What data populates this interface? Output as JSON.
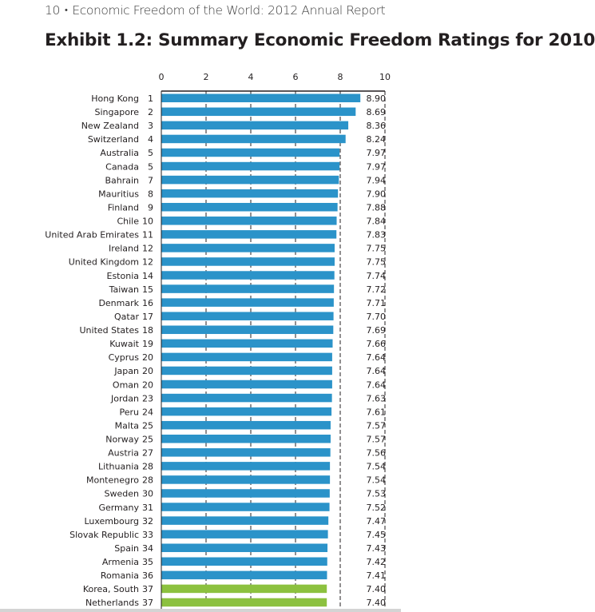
{
  "header": {
    "page_number": "10",
    "separator": "•",
    "publication": "Economic Freedom of the World: 2012 Annual Report"
  },
  "colors": {
    "bar_default": "#2b93c9",
    "bar_highlight": "#8cc13f",
    "text": "#231f20"
  },
  "chart_data": {
    "type": "bar",
    "orientation": "horizontal",
    "title": "Exhibit 1.2: Summary Economic Freedom Ratings for 2010",
    "xlabel": "",
    "ylabel": "",
    "xlim": [
      0,
      10
    ],
    "x_ticks": [
      0,
      2,
      4,
      6,
      8,
      10
    ],
    "grid": "vertical dashed",
    "legend": "none",
    "categories": [
      "Hong Kong",
      "Singapore",
      "New Zealand",
      "Switzerland",
      "Australia",
      "Canada",
      "Bahrain",
      "Mauritius",
      "Finland",
      "Chile",
      "United Arab Emirates",
      "Ireland",
      "United Kingdom",
      "Estonia",
      "Taiwan",
      "Denmark",
      "Qatar",
      "United States",
      "Kuwait",
      "Cyprus",
      "Japan",
      "Oman",
      "Jordan",
      "Peru",
      "Malta",
      "Norway",
      "Austria",
      "Lithuania",
      "Montenegro",
      "Sweden",
      "Germany",
      "Luxembourg",
      "Slovak Republic",
      "Spain",
      "Armenia",
      "Romania",
      "Korea, South",
      "Netherlands"
    ],
    "ranks": [
      1,
      2,
      3,
      4,
      5,
      5,
      7,
      8,
      9,
      10,
      11,
      12,
      12,
      14,
      15,
      16,
      17,
      18,
      19,
      20,
      20,
      20,
      23,
      24,
      25,
      25,
      27,
      28,
      28,
      30,
      31,
      32,
      33,
      34,
      35,
      36,
      37,
      37
    ],
    "values": [
      8.9,
      8.69,
      8.36,
      8.24,
      7.97,
      7.97,
      7.94,
      7.9,
      7.88,
      7.84,
      7.83,
      7.75,
      7.75,
      7.74,
      7.72,
      7.71,
      7.7,
      7.69,
      7.66,
      7.64,
      7.64,
      7.64,
      7.63,
      7.61,
      7.57,
      7.57,
      7.56,
      7.54,
      7.54,
      7.53,
      7.52,
      7.47,
      7.45,
      7.43,
      7.42,
      7.41,
      7.4,
      7.4
    ],
    "value_labels": [
      "8.90",
      "8.69",
      "8.36",
      "8.24",
      "7.97",
      "7.97",
      "7.94",
      "7.90",
      "7.88",
      "7.84",
      "7.83",
      "7.75",
      "7.75",
      "7.74",
      "7.72",
      "7.71",
      "7.70",
      "7.69",
      "7.66",
      "7.64",
      "7.64",
      "7.64",
      "7.63",
      "7.61",
      "7.57",
      "7.57",
      "7.56",
      "7.54",
      "7.54",
      "7.53",
      "7.52",
      "7.47",
      "7.45",
      "7.43",
      "7.42",
      "7.41",
      "7.40",
      "7.40"
    ],
    "highlighted": [
      "Korea, South",
      "Netherlands"
    ]
  }
}
